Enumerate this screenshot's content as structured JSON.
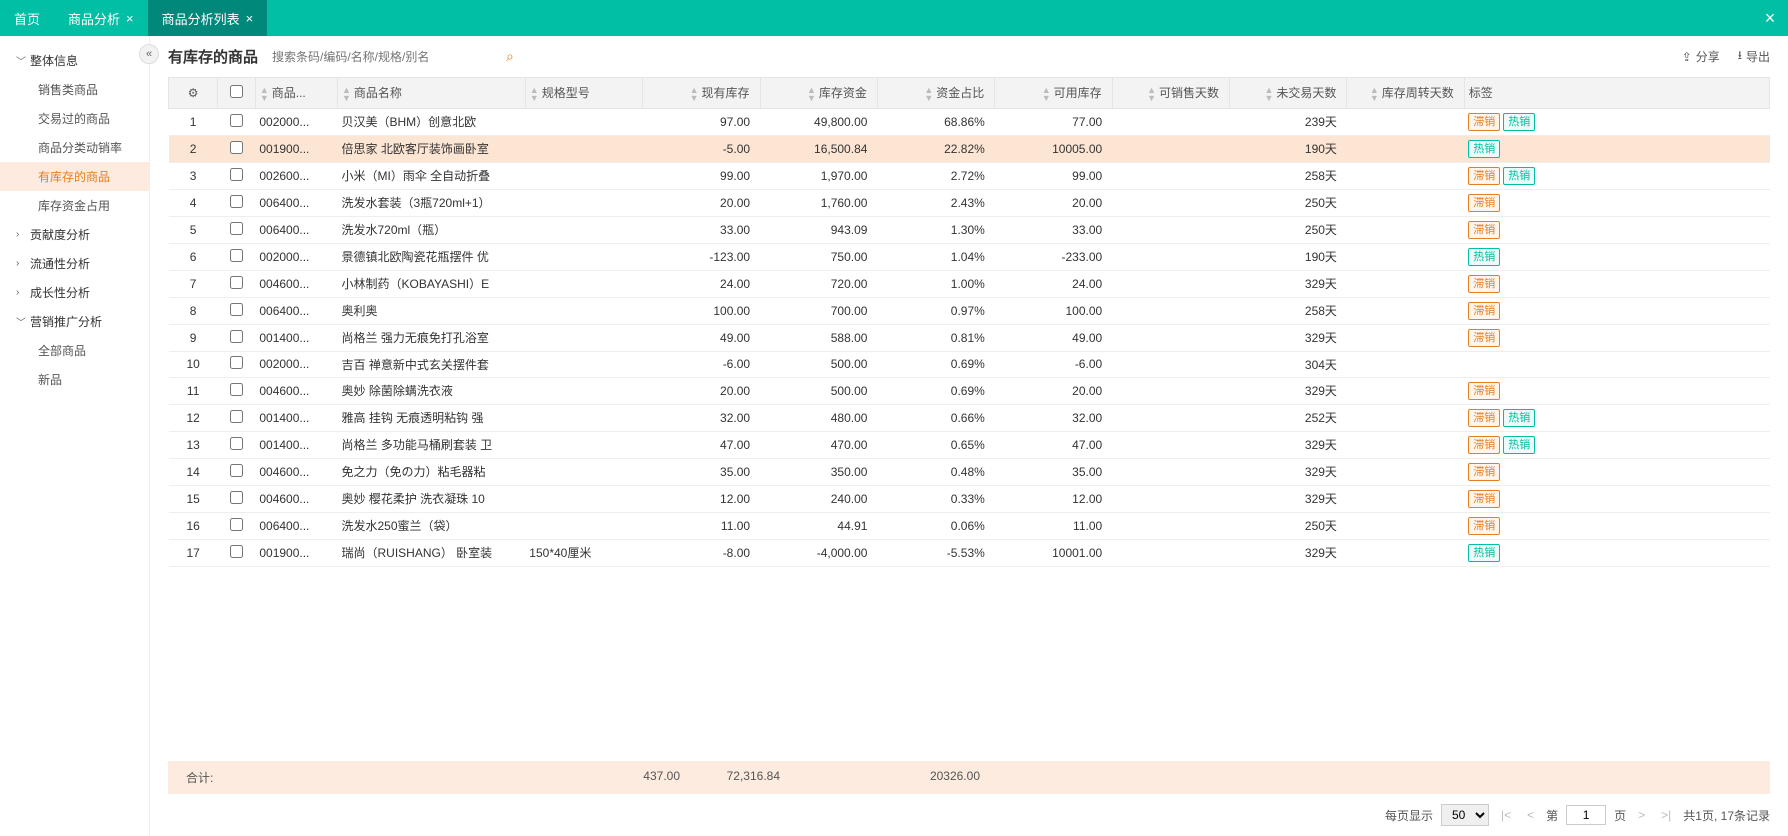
{
  "tabs": [
    {
      "label": "首页",
      "closable": false,
      "active": false
    },
    {
      "label": "商品分析",
      "closable": true,
      "active": false
    },
    {
      "label": "商品分析列表",
      "closable": true,
      "active": true
    }
  ],
  "sidebar": {
    "groups": [
      {
        "title": "整体信息",
        "expanded": true,
        "items": [
          {
            "label": "销售类商品"
          },
          {
            "label": "交易过的商品"
          },
          {
            "label": "商品分类动销率"
          },
          {
            "label": "有库存的商品",
            "active": true
          },
          {
            "label": "库存资金占用"
          }
        ]
      },
      {
        "title": "贡献度分析",
        "expanded": false,
        "items": []
      },
      {
        "title": "流通性分析",
        "expanded": false,
        "items": []
      },
      {
        "title": "成长性分析",
        "expanded": false,
        "items": []
      },
      {
        "title": "营销推广分析",
        "expanded": true,
        "items": [
          {
            "label": "全部商品"
          },
          {
            "label": "新品"
          }
        ]
      }
    ]
  },
  "page": {
    "title": "有库存的商品",
    "searchPlaceholder": "搜索条码/编码/名称/规格/别名",
    "share": "分享",
    "export": "导出"
  },
  "columns": {
    "gear": "⚙",
    "code": "商品...",
    "name": "商品名称",
    "spec": "规格型号",
    "stock": "现有库存",
    "fund": "库存资金",
    "ratio": "资金占比",
    "avail": "可用库存",
    "saleDays": "可销售天数",
    "noTradeDays": "未交易天数",
    "turnDays": "库存周转天数",
    "tags": "标签"
  },
  "tagText": {
    "stagnant": "滞销",
    "hot": "热销"
  },
  "rows": [
    {
      "idx": 1,
      "code": "002000...",
      "name": "贝汉美（BHM）创意北欧",
      "spec": "",
      "stock": "97.00",
      "fund": "49,800.00",
      "ratio": "68.86%",
      "avail": "77.00",
      "saleDays": "",
      "noTradeDays": "239天",
      "turnDays": "",
      "tags": [
        "stagnant",
        "hot"
      ]
    },
    {
      "idx": 2,
      "code": "001900...",
      "name": "倍思家 北欧客厅装饰画卧室",
      "spec": "",
      "stock": "-5.00",
      "fund": "16,500.84",
      "ratio": "22.82%",
      "avail": "10005.00",
      "saleDays": "",
      "noTradeDays": "190天",
      "turnDays": "",
      "tags": [
        "hot"
      ],
      "highlight": true
    },
    {
      "idx": 3,
      "code": "002600...",
      "name": "小米（MI）雨伞 全自动折叠",
      "spec": "",
      "stock": "99.00",
      "fund": "1,970.00",
      "ratio": "2.72%",
      "avail": "99.00",
      "saleDays": "",
      "noTradeDays": "258天",
      "turnDays": "",
      "tags": [
        "stagnant",
        "hot"
      ]
    },
    {
      "idx": 4,
      "code": "006400...",
      "name": "洗发水套装（3瓶720ml+1）",
      "spec": "",
      "stock": "20.00",
      "fund": "1,760.00",
      "ratio": "2.43%",
      "avail": "20.00",
      "saleDays": "",
      "noTradeDays": "250天",
      "turnDays": "",
      "tags": [
        "stagnant"
      ]
    },
    {
      "idx": 5,
      "code": "006400...",
      "name": "洗发水720ml（瓶）",
      "spec": "",
      "stock": "33.00",
      "fund": "943.09",
      "ratio": "1.30%",
      "avail": "33.00",
      "saleDays": "",
      "noTradeDays": "250天",
      "turnDays": "",
      "tags": [
        "stagnant"
      ]
    },
    {
      "idx": 6,
      "code": "002000...",
      "name": "景德镇北欧陶瓷花瓶摆件 优",
      "spec": "",
      "stock": "-123.00",
      "fund": "750.00",
      "ratio": "1.04%",
      "avail": "-233.00",
      "saleDays": "",
      "noTradeDays": "190天",
      "turnDays": "",
      "tags": [
        "hot"
      ]
    },
    {
      "idx": 7,
      "code": "004600...",
      "name": "小林制药（KOBAYASHI）E",
      "spec": "",
      "stock": "24.00",
      "fund": "720.00",
      "ratio": "1.00%",
      "avail": "24.00",
      "saleDays": "",
      "noTradeDays": "329天",
      "turnDays": "",
      "tags": [
        "stagnant"
      ]
    },
    {
      "idx": 8,
      "code": "006400...",
      "name": "奥利奥",
      "spec": "",
      "stock": "100.00",
      "fund": "700.00",
      "ratio": "0.97%",
      "avail": "100.00",
      "saleDays": "",
      "noTradeDays": "258天",
      "turnDays": "",
      "tags": [
        "stagnant"
      ]
    },
    {
      "idx": 9,
      "code": "001400...",
      "name": "尚格兰 强力无痕免打孔浴室",
      "spec": "",
      "stock": "49.00",
      "fund": "588.00",
      "ratio": "0.81%",
      "avail": "49.00",
      "saleDays": "",
      "noTradeDays": "329天",
      "turnDays": "",
      "tags": [
        "stagnant"
      ]
    },
    {
      "idx": 10,
      "code": "002000...",
      "name": "吉百 禅意新中式玄关摆件套",
      "spec": "",
      "stock": "-6.00",
      "fund": "500.00",
      "ratio": "0.69%",
      "avail": "-6.00",
      "saleDays": "",
      "noTradeDays": "304天",
      "turnDays": "",
      "tags": []
    },
    {
      "idx": 11,
      "code": "004600...",
      "name": "奥妙 除菌除螨洗衣液",
      "spec": "",
      "stock": "20.00",
      "fund": "500.00",
      "ratio": "0.69%",
      "avail": "20.00",
      "saleDays": "",
      "noTradeDays": "329天",
      "turnDays": "",
      "tags": [
        "stagnant"
      ]
    },
    {
      "idx": 12,
      "code": "001400...",
      "name": "雅高 挂钩 无痕透明粘钩 强",
      "spec": "",
      "stock": "32.00",
      "fund": "480.00",
      "ratio": "0.66%",
      "avail": "32.00",
      "saleDays": "",
      "noTradeDays": "252天",
      "turnDays": "",
      "tags": [
        "stagnant",
        "hot"
      ]
    },
    {
      "idx": 13,
      "code": "001400...",
      "name": "尚格兰 多功能马桶刷套装 卫",
      "spec": "",
      "stock": "47.00",
      "fund": "470.00",
      "ratio": "0.65%",
      "avail": "47.00",
      "saleDays": "",
      "noTradeDays": "329天",
      "turnDays": "",
      "tags": [
        "stagnant",
        "hot"
      ]
    },
    {
      "idx": 14,
      "code": "004600...",
      "name": "免之力（免の力）粘毛器粘",
      "spec": "",
      "stock": "35.00",
      "fund": "350.00",
      "ratio": "0.48%",
      "avail": "35.00",
      "saleDays": "",
      "noTradeDays": "329天",
      "turnDays": "",
      "tags": [
        "stagnant"
      ]
    },
    {
      "idx": 15,
      "code": "004600...",
      "name": "奥妙 樱花柔护 洗衣凝珠 10",
      "spec": "",
      "stock": "12.00",
      "fund": "240.00",
      "ratio": "0.33%",
      "avail": "12.00",
      "saleDays": "",
      "noTradeDays": "329天",
      "turnDays": "",
      "tags": [
        "stagnant"
      ]
    },
    {
      "idx": 16,
      "code": "006400...",
      "name": "洗发水250蜜兰（袋）",
      "spec": "",
      "stock": "11.00",
      "fund": "44.91",
      "ratio": "0.06%",
      "avail": "11.00",
      "saleDays": "",
      "noTradeDays": "250天",
      "turnDays": "",
      "tags": [
        "stagnant"
      ]
    },
    {
      "idx": 17,
      "code": "001900...",
      "name": "瑞尚（RUISHANG） 卧室装",
      "spec": "150*40厘米",
      "stock": "-8.00",
      "fund": "-4,000.00",
      "ratio": "-5.53%",
      "avail": "10001.00",
      "saleDays": "",
      "noTradeDays": "329天",
      "turnDays": "",
      "tags": [
        "hot"
      ]
    }
  ],
  "totals": {
    "label": "合计:",
    "stock": "437.00",
    "fund": "72,316.84",
    "avail": "20326.00"
  },
  "pager": {
    "perPageLabel": "每页显示",
    "perPageValue": "50",
    "pageWord1": "第",
    "currentPage": "1",
    "pageWord2": "页",
    "info": "共1页, 17条记录"
  }
}
